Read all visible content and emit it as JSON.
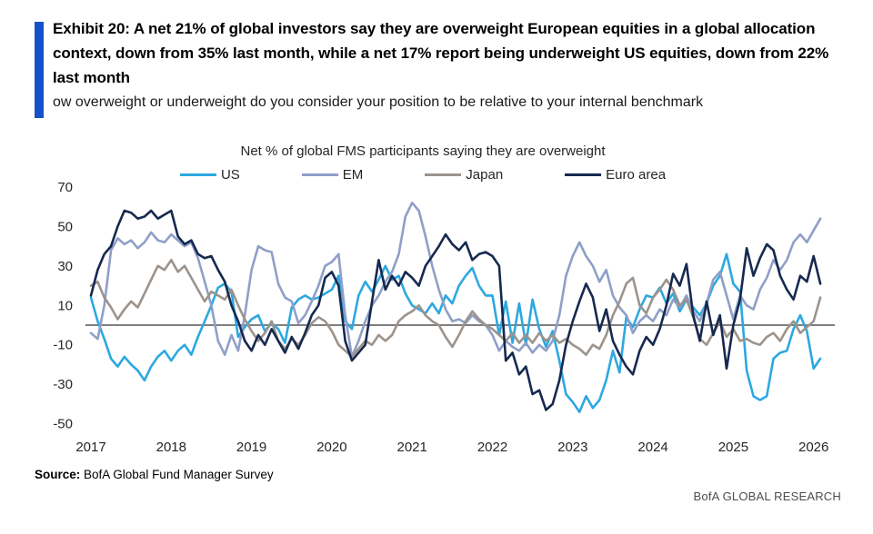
{
  "header": {
    "exhibit_title": "Exhibit 20: A net 21% of global investors say they are overweight European equities in a global allocation context, down from 35% last month, while a net 17% report being underweight US equities, down from 22% last month",
    "question": "ow overweight or underweight do you consider your position to be relative to your internal benchmark",
    "accent_color": "#1551c8"
  },
  "footer": {
    "source_label": "Source:",
    "source_text": " BofA Global Fund Manager Survey",
    "brand": "BofA GLOBAL RESEARCH"
  },
  "chart_data": {
    "type": "line",
    "title": "Net % of global FMS participants saying they are overweight",
    "grid": false,
    "legend_position": "top",
    "x_axis": {
      "start": "2017-01",
      "end": "2026-02",
      "frequency": "monthly",
      "tick_labels": [
        "2017",
        "2018",
        "2019",
        "2020",
        "2021",
        "2022",
        "2023",
        "2024",
        "2025",
        "2026"
      ]
    },
    "y_axis": {
      "ticks": [
        70,
        50,
        30,
        10,
        -10,
        -30,
        -50
      ],
      "min": -50,
      "max": 70,
      "zero_line": true,
      "zero_line_color": "#7f7f7f"
    },
    "series": [
      {
        "name": "US",
        "color": "#2da8e0",
        "values": [
          14,
          2,
          -7,
          -17,
          -21,
          -16,
          -20,
          -23,
          -28,
          -21,
          -16,
          -13,
          -18,
          -13,
          -10,
          -15,
          -6,
          2,
          10,
          19,
          21,
          17,
          -6,
          -1,
          3,
          5,
          -3,
          1,
          -2,
          -9,
          9,
          13,
          15,
          13,
          14,
          16,
          18,
          25,
          2,
          -2,
          15,
          22,
          17,
          23,
          30,
          23,
          25,
          16,
          10,
          8,
          6,
          11,
          6,
          15,
          11,
          20,
          25,
          29,
          20,
          15,
          15,
          -5,
          12,
          -9,
          11,
          -10,
          13,
          -2,
          -11,
          -3,
          -18,
          -35,
          -39,
          -44,
          -36,
          -42,
          -38,
          -28,
          -13,
          -24,
          4,
          -1,
          8,
          15,
          14,
          19,
          11,
          16,
          7,
          13,
          9,
          5,
          11,
          20,
          25,
          36,
          21,
          17,
          -23,
          -36,
          -38,
          -36,
          -17,
          -14,
          -13,
          -2,
          5,
          -3,
          -22,
          -17
        ]
      },
      {
        "name": "EM",
        "color": "#8f9fc8",
        "values": [
          -4,
          -7,
          10,
          38,
          44,
          41,
          43,
          39,
          42,
          47,
          43,
          42,
          46,
          43,
          40,
          42,
          34,
          22,
          10,
          -8,
          -15,
          -5,
          -13,
          5,
          28,
          40,
          38,
          37,
          21,
          14,
          12,
          1,
          5,
          12,
          20,
          30,
          32,
          36,
          5,
          -16,
          -8,
          2,
          10,
          15,
          22,
          27,
          36,
          55,
          62,
          58,
          45,
          30,
          18,
          8,
          2,
          3,
          1,
          5,
          2,
          0,
          -5,
          -13,
          -8,
          -11,
          -13,
          -9,
          -14,
          -10,
          -13,
          -8,
          5,
          25,
          35,
          42,
          35,
          30,
          22,
          28,
          15,
          9,
          5,
          -4,
          2,
          5,
          2,
          8,
          5,
          13,
          9,
          15,
          7,
          2,
          11,
          23,
          27,
          15,
          3,
          15,
          10,
          8,
          18,
          24,
          33,
          28,
          33,
          42,
          46,
          42,
          48,
          54
        ]
      },
      {
        "name": "Japan",
        "color": "#9c938c",
        "values": [
          20,
          22,
          14,
          9,
          3,
          8,
          12,
          9,
          16,
          23,
          30,
          28,
          33,
          27,
          30,
          24,
          18,
          12,
          17,
          15,
          13,
          18,
          10,
          3,
          -3,
          -8,
          -4,
          2,
          -8,
          -12,
          -7,
          -10,
          -5,
          1,
          4,
          2,
          -3,
          -10,
          -13,
          -16,
          -12,
          -8,
          -10,
          -5,
          -8,
          -5,
          2,
          5,
          7,
          10,
          5,
          2,
          0,
          -6,
          -11,
          -5,
          2,
          7,
          3,
          0,
          -2,
          -5,
          -8,
          -4,
          -9,
          -5,
          -9,
          -4,
          -8,
          -5,
          -9,
          -7,
          -10,
          -12,
          -15,
          -10,
          -12,
          -5,
          5,
          12,
          21,
          24,
          10,
          6,
          14,
          18,
          23,
          18,
          10,
          13,
          4,
          -7,
          -10,
          -4,
          2,
          -6,
          -2,
          -8,
          -7,
          -9,
          -10,
          -6,
          -4,
          -8,
          -2,
          2,
          -4,
          -1,
          2,
          14
        ]
      },
      {
        "name": "Euro area",
        "color": "#16294f",
        "values": [
          15,
          28,
          36,
          40,
          50,
          58,
          57,
          54,
          55,
          58,
          54,
          56,
          58,
          45,
          41,
          43,
          36,
          34,
          35,
          28,
          22,
          10,
          2,
          -8,
          -13,
          -5,
          -10,
          -2,
          -8,
          -14,
          -6,
          -12,
          -4,
          5,
          10,
          24,
          27,
          20,
          -8,
          -18,
          -14,
          -10,
          12,
          33,
          18,
          25,
          20,
          27,
          24,
          20,
          30,
          35,
          40,
          46,
          41,
          38,
          42,
          33,
          36,
          37,
          35,
          30,
          -18,
          -14,
          -25,
          -21,
          -35,
          -33,
          -43,
          -40,
          -28,
          -10,
          2,
          12,
          21,
          14,
          -3,
          8,
          -8,
          -15,
          -21,
          -25,
          -13,
          -6,
          -10,
          -2,
          10,
          26,
          20,
          31,
          5,
          -8,
          12,
          -5,
          5,
          -22,
          0,
          13,
          39,
          25,
          34,
          41,
          38,
          25,
          18,
          13,
          25,
          22,
          35,
          21
        ]
      }
    ]
  }
}
